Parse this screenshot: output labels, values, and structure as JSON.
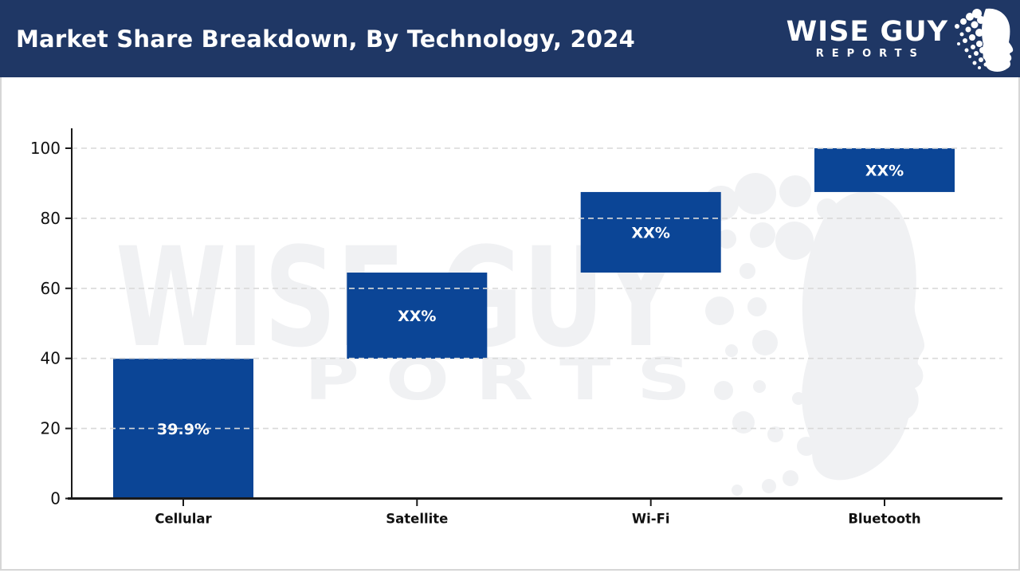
{
  "header": {
    "title": "Market Share Breakdown, By Technology, 2024",
    "logo": {
      "brand_line1": "WISE GUY",
      "brand_line2": "REPORTS"
    }
  },
  "watermark": {
    "line1": "WISE GUY",
    "line2": "P O R T S"
  },
  "colors": {
    "header_bg": "#1f3765",
    "bar_blue": "#0b4596",
    "watermark": "#f0f1f3",
    "grid": "#d9d9d9",
    "axis": "#1a1a1a",
    "tick_label": "#111111",
    "label_on_bar": "#ffffff"
  },
  "chart_data": {
    "type": "bar",
    "subtype": "waterfall",
    "title": "Market Share Breakdown, By Technology, 2024",
    "categories": [
      "Cellular",
      "Satellite",
      "Wi-Fi",
      "Bluetooth"
    ],
    "segments": [
      {
        "category": "Cellular",
        "start": 0,
        "end": 39.9,
        "value": 39.9,
        "label": "39.9%"
      },
      {
        "category": "Satellite",
        "start": 39.9,
        "end": 64.5,
        "value": 24.6,
        "label": "XX%"
      },
      {
        "category": "Wi-Fi",
        "start": 64.5,
        "end": 87.5,
        "value": 23.0,
        "label": "XX%"
      },
      {
        "category": "Bluetooth",
        "start": 87.5,
        "end": 100,
        "value": 12.5,
        "label": "XX%"
      }
    ],
    "ylim": [
      0,
      100
    ],
    "yticks": [
      0,
      20,
      40,
      60,
      80,
      100
    ],
    "xlabel": "",
    "ylabel": "",
    "grid": "horizontal-dashed-above-bars",
    "legend": "none"
  }
}
